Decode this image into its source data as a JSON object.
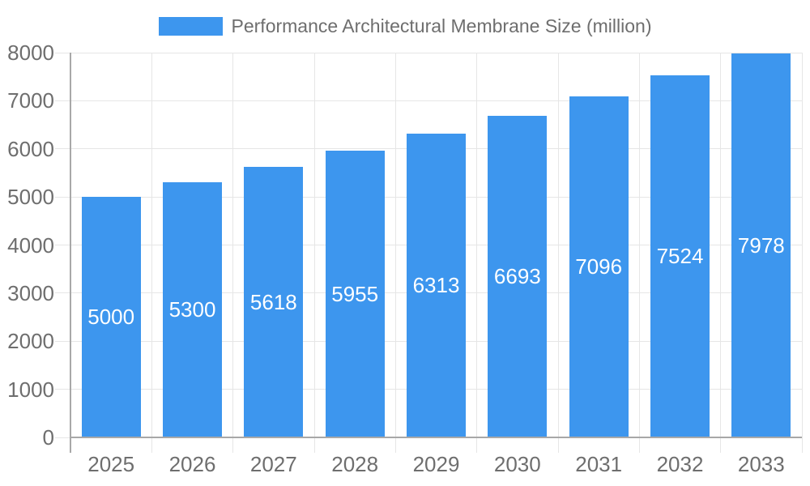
{
  "chart_data": {
    "type": "bar",
    "title": "Performance Architectural Membrane Size (million)",
    "legend_label": "Performance Architectural Membrane Size (million)",
    "legend_position": "top",
    "categories": [
      "2025",
      "2026",
      "2027",
      "2028",
      "2029",
      "2030",
      "2031",
      "2032",
      "2033"
    ],
    "values": [
      5000,
      5300,
      5618,
      5955,
      6313,
      6693,
      7096,
      7524,
      7978
    ],
    "value_labels": [
      "5000",
      "5300",
      "5618",
      "5955",
      "6313",
      "6693",
      "7096",
      "7524",
      "7978"
    ],
    "xlabel": "",
    "ylabel": "",
    "ylim": [
      0,
      8000
    ],
    "y_tick_step": 1000,
    "y_tick_labels": [
      "0",
      "1000",
      "2000",
      "3000",
      "4000",
      "5000",
      "6000",
      "7000",
      "8000"
    ],
    "grid": true,
    "bar_color": "#3d96ee",
    "value_label_color": "#ffffff",
    "tick_label_color": "#6e6e6e",
    "gridline_color": "#e6e6e6",
    "axis_color": "#a8a8a8"
  }
}
